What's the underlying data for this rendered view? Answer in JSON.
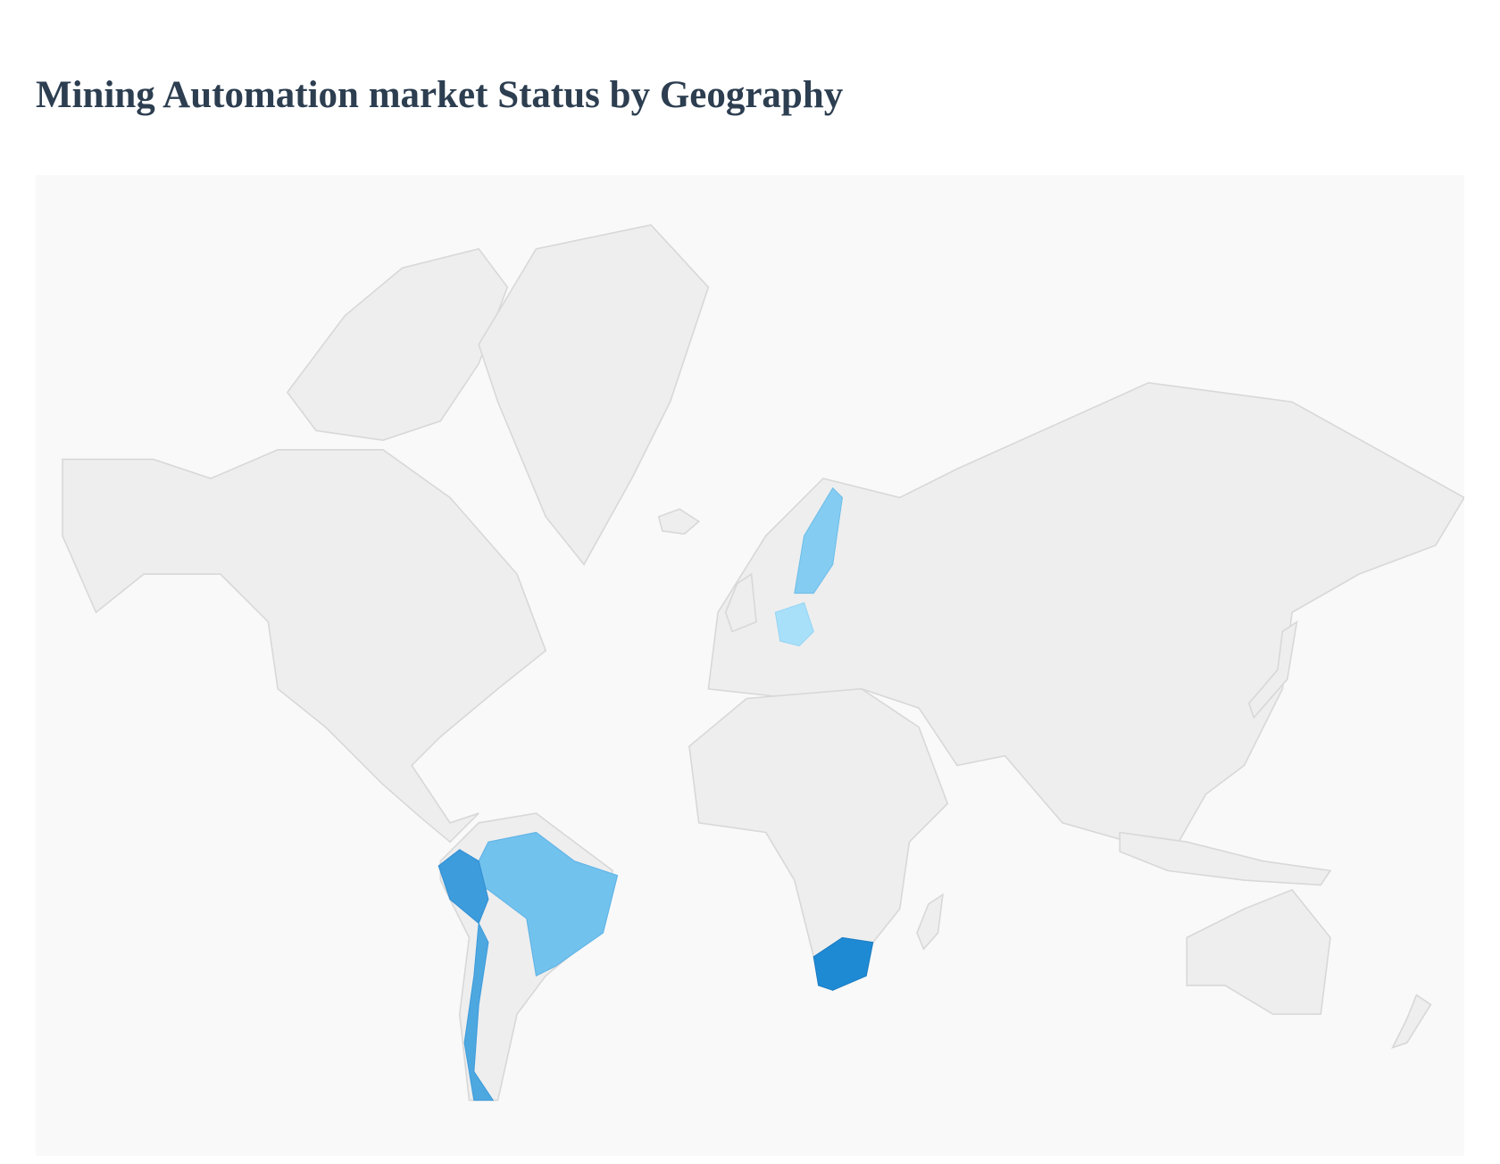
{
  "header": {
    "title": "Mining Automation market Status by Geography"
  }
}
